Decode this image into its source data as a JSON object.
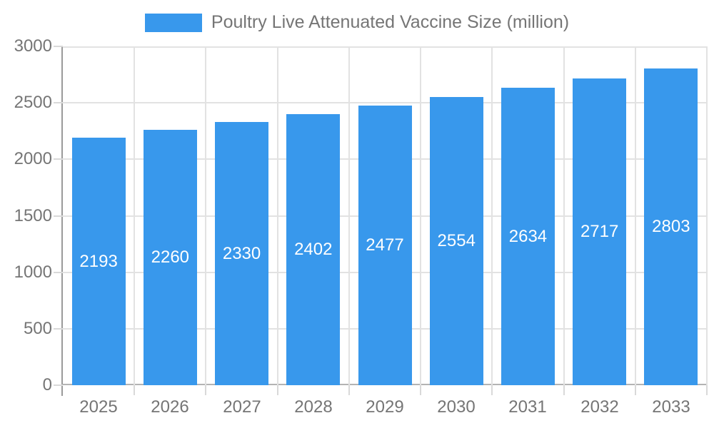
{
  "legend": {
    "label": "Poultry Live Attenuated Vaccine Size (million)"
  },
  "chart_data": {
    "type": "bar",
    "title": "",
    "legend_entries": [
      "Poultry Live Attenuated Vaccine Size (million)"
    ],
    "legend_position": "top",
    "categories": [
      "2025",
      "2026",
      "2027",
      "2028",
      "2029",
      "2030",
      "2031",
      "2032",
      "2033"
    ],
    "values": [
      2193,
      2260,
      2330,
      2402,
      2477,
      2554,
      2634,
      2717,
      2803
    ],
    "value_labels": [
      "2193",
      "2260",
      "2330",
      "2402",
      "2477",
      "2554",
      "2634",
      "2717",
      "2803"
    ],
    "xlabel": "",
    "ylabel": "",
    "ylim": [
      0,
      3000
    ],
    "yticks": [
      0,
      500,
      1000,
      1500,
      2000,
      2500,
      3000
    ],
    "grid": true,
    "colors": {
      "bar": "#3898EC",
      "value_label": "#FFFFFF",
      "axis_text": "#757575",
      "gridline": "#E2E2E2",
      "tick": "#D9D9D9",
      "y_axis_line": "#9A9A9A",
      "x_axis_line": "#B3B3B3",
      "background": "#FFFFFF"
    }
  }
}
